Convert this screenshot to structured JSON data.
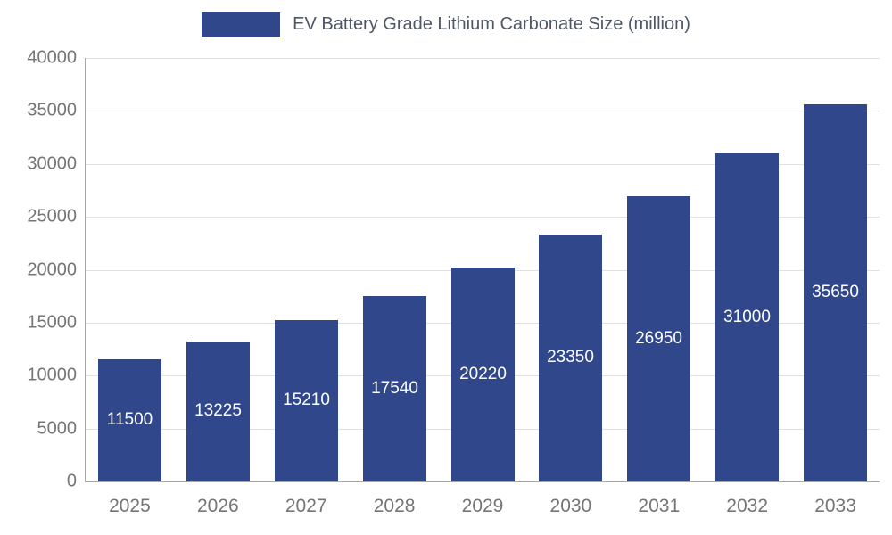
{
  "legend": {
    "label": "EV Battery Grade Lithium Carbonate Size (million)"
  },
  "colors": {
    "bar": "#30478b",
    "value_label": "#ffffff",
    "axis_text": "#757575",
    "gridline": "#e0e0e0",
    "axis_line": "#a6a6a6",
    "title_text": "#4d5766"
  },
  "chart_data": {
    "type": "bar",
    "title": "EV Battery Grade Lithium Carbonate Size (million)",
    "categories": [
      "2025",
      "2026",
      "2027",
      "2028",
      "2029",
      "2030",
      "2031",
      "2032",
      "2033"
    ],
    "values": [
      11500,
      13225,
      15210,
      17540,
      20220,
      23350,
      26950,
      31000,
      35650
    ],
    "xlabel": "",
    "ylabel": "",
    "ylim": [
      0,
      40000
    ],
    "ytick_interval": 5000,
    "ytick_labels": [
      "0",
      "5000",
      "10000",
      "15000",
      "20000",
      "25000",
      "30000",
      "35000",
      "40000"
    ],
    "grid": true,
    "legend_position": "top-center",
    "value_labels_shown": true,
    "value_label_position": "inside-center"
  }
}
